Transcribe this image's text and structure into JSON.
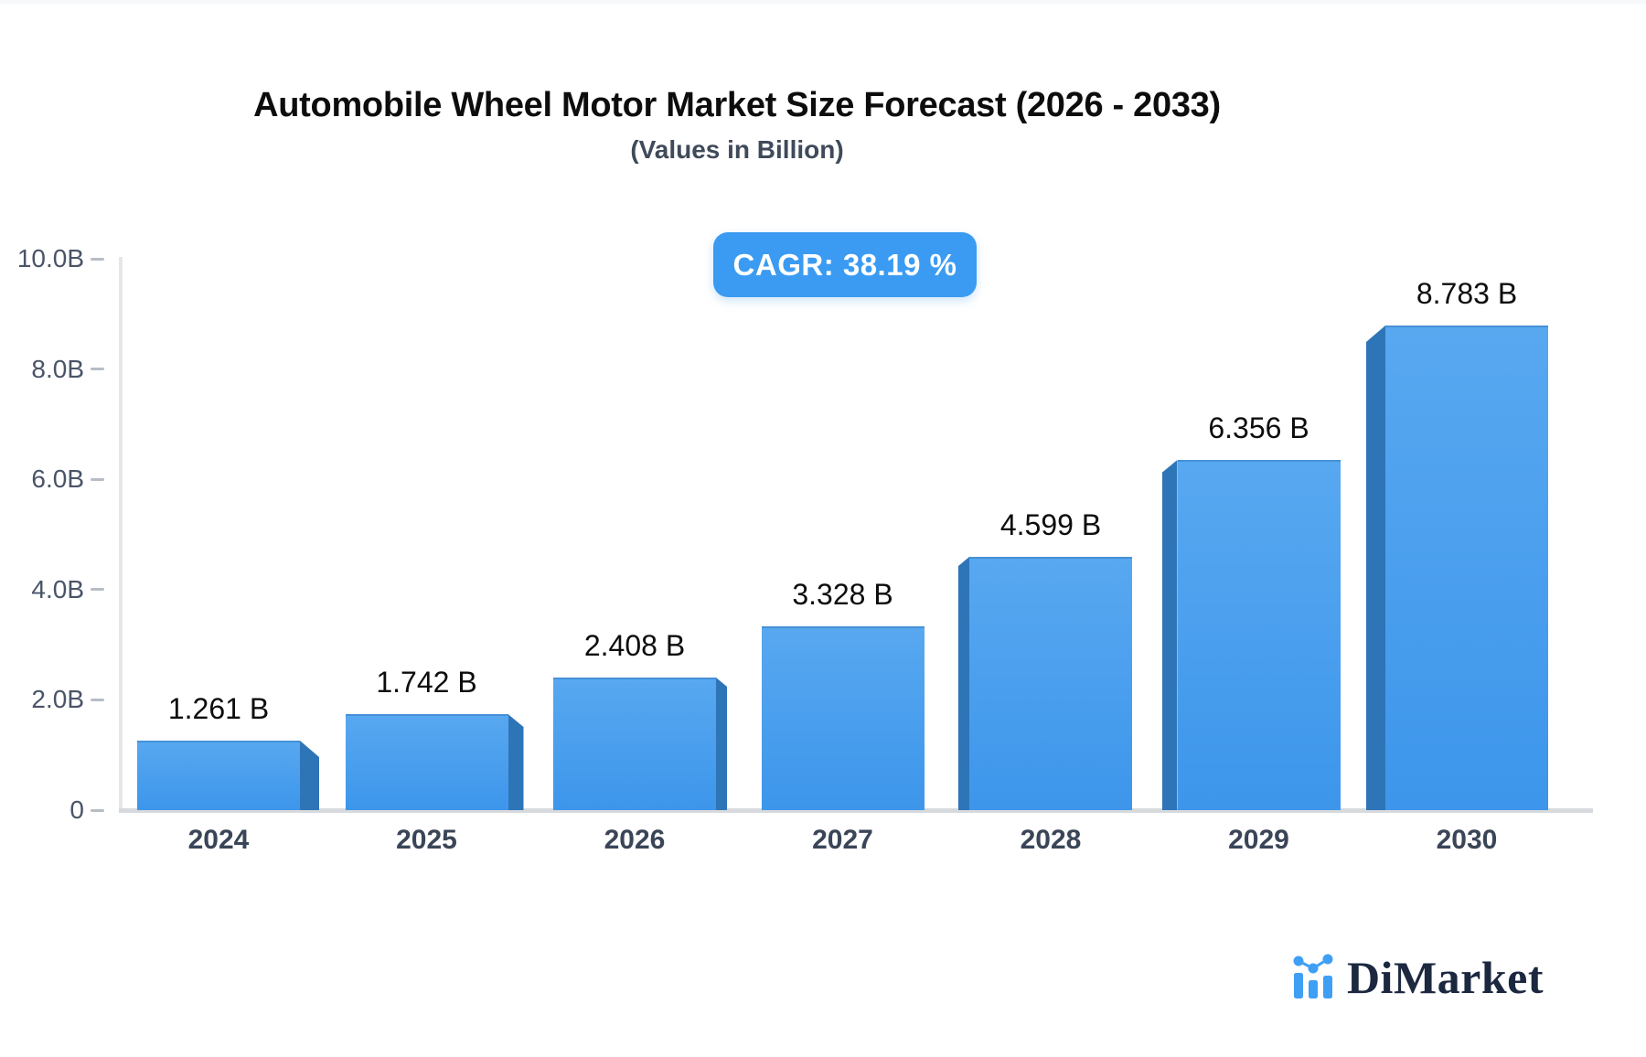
{
  "header": {
    "title": "Automobile Wheel Motor Market Size Forecast (2026 - 2033)",
    "subtitle": "(Values in Billion)",
    "cagr_label": "CAGR: 38.19 %"
  },
  "chart_data": {
    "type": "bar",
    "title": "Automobile Wheel Motor Market Size Forecast (2026 - 2033)",
    "subtitle": "(Values in Billion)",
    "cagr_percent": 38.19,
    "categories": [
      "2024",
      "2025",
      "2026",
      "2027",
      "2028",
      "2029",
      "2030"
    ],
    "values": [
      1.261,
      1.742,
      2.408,
      3.328,
      4.599,
      6.356,
      8.783
    ],
    "value_labels": [
      "1.261 B",
      "1.742 B",
      "2.408 B",
      "3.328 B",
      "4.599 B",
      "6.356 B",
      "8.783 B"
    ],
    "unit": "Billion",
    "xlabel": "",
    "ylabel": "",
    "y_axis": {
      "ticks": [
        0,
        2,
        4,
        6,
        8,
        10
      ],
      "tick_labels": [
        "0",
        "2.0B",
        "4.0B",
        "6.0B",
        "8.0B",
        "10.0B"
      ],
      "range": [
        0,
        10
      ]
    },
    "legend": "none",
    "grid": false
  },
  "footer": {
    "brand": "DiMarket"
  },
  "colors": {
    "bar_face_top": "#58A8F0",
    "bar_face_bottom": "#3D96EB",
    "bar_face_edge": "rgba(31,94,156,0.30)",
    "bar_side": "#2E75B7",
    "badge_bg": "#3B9BF2",
    "axis_line": "#E4E7EA",
    "baseline": "#D7DADD",
    "tick_dash": "#B7BDC4",
    "brand_blue": "#3F9FF5"
  }
}
